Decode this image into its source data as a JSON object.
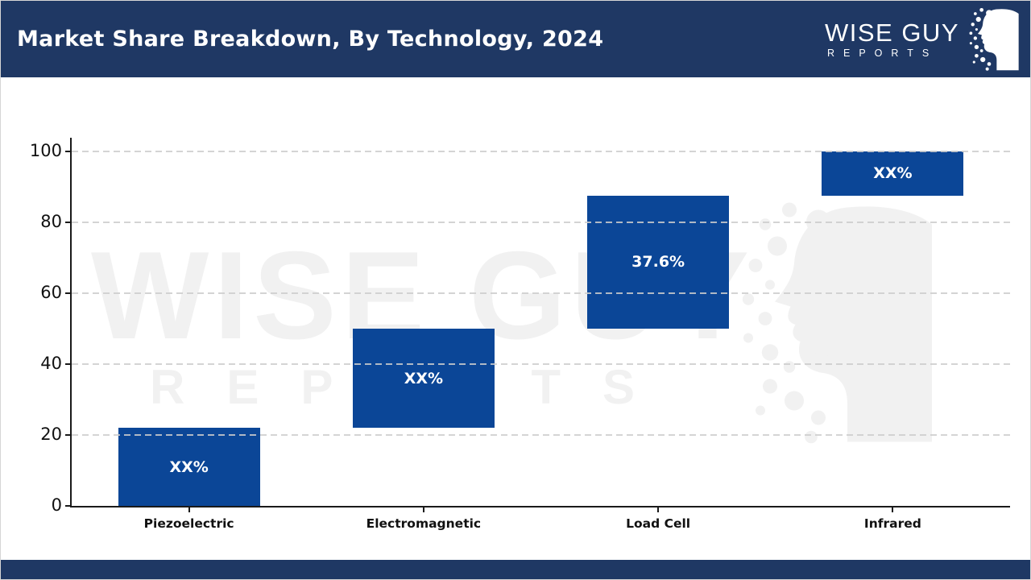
{
  "header": {
    "title": "Market Share Breakdown, By Technology, 2024",
    "logo": {
      "line1": "WISE GUY",
      "line2": "REPORTS"
    }
  },
  "watermark": {
    "line1": "WISE GUY",
    "line2": "REPORTS"
  },
  "footer": {},
  "colors": {
    "header_bg": "#1f3864",
    "footer_bg": "#1f3864",
    "bar": "#0b4697",
    "grid": "rgba(205,205,205,0.85)",
    "axis": "#1a1a1a",
    "watermark": "#f1f1f1",
    "title_text": "#ffffff",
    "bar_label_text": "#ffffff"
  },
  "chart_data": {
    "type": "bar",
    "subtype": "floating-column (waterfall-style market share breakdown)",
    "title": "Market Share Breakdown, By Technology, 2024",
    "categories": [
      "Piezoelectric",
      "Electromagnetic",
      "Load Cell",
      "Infrared"
    ],
    "series": [
      {
        "name": "Market share (%)",
        "ranges": [
          [
            0,
            22
          ],
          [
            22,
            50
          ],
          [
            50,
            87.6
          ],
          [
            87.6,
            100
          ]
        ],
        "labels": [
          "XX%",
          "XX%",
          "37.6%",
          "XX%"
        ]
      }
    ],
    "xlabel": "",
    "ylabel": "",
    "ylim": [
      0,
      100
    ],
    "yticks": [
      0,
      20,
      40,
      60,
      80,
      100
    ],
    "grid": "horizontal dashed lines, drawn above bars",
    "legend": "none"
  }
}
